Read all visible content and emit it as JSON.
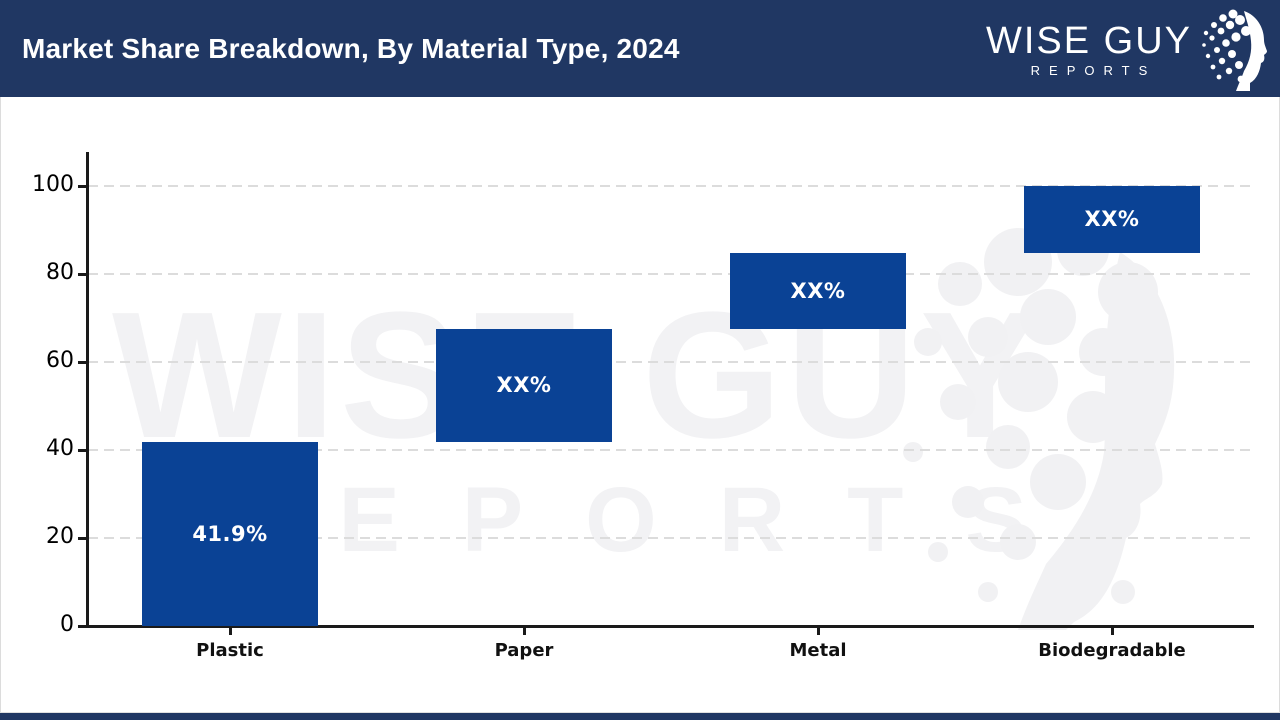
{
  "header": {
    "title": "Market Share Breakdown, By Material Type, 2024",
    "logo": {
      "line1": "WISE GUY",
      "line2": "REPORTS"
    }
  },
  "watermark": {
    "line1": "WISE GUY",
    "line2": "REPORTS"
  },
  "chart_data": {
    "type": "bar",
    "subtype": "waterfall",
    "title": "Market Share Breakdown, By Material Type, 2024",
    "categories": [
      "Plastic",
      "Paper",
      "Metal",
      "Biodegradable"
    ],
    "bars": [
      {
        "category": "Plastic",
        "label": "41.9%",
        "value": 41.9,
        "start": 0,
        "end": 41.9
      },
      {
        "category": "Paper",
        "label": "XX%",
        "value": 25.7,
        "start": 41.9,
        "end": 67.6
      },
      {
        "category": "Metal",
        "label": "XX%",
        "value": 17.2,
        "start": 67.6,
        "end": 84.8
      },
      {
        "category": "Biodegradable",
        "label": "XX%",
        "value": 15.2,
        "start": 84.8,
        "end": 100
      }
    ],
    "yticks": [
      0,
      20,
      40,
      60,
      80,
      100
    ],
    "ylim": [
      0,
      107
    ],
    "xlabel": "",
    "ylabel": "",
    "grid": "horizontal-dashed",
    "legend": "none",
    "bar_color": "#0A4295",
    "value_label_color": "#ffffff",
    "axis_color": "#1a1a1a",
    "grid_color": "#dcdcdc"
  },
  "colors": {
    "header_bg": "#203763",
    "footer_bg": "#203763",
    "background": "#ffffff",
    "watermark": "#f2f2f4"
  }
}
